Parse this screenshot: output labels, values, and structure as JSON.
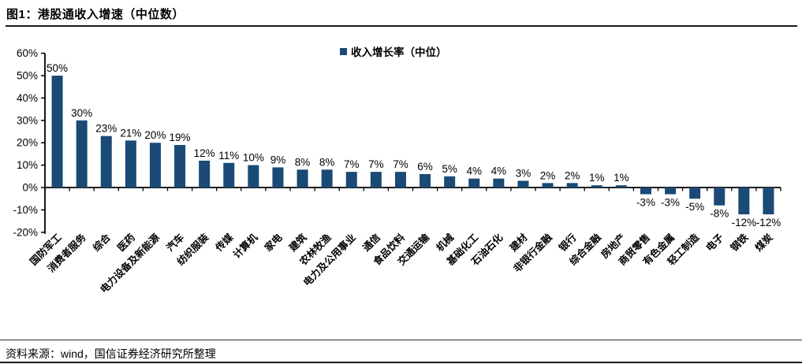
{
  "figure": {
    "title": "图1：港股通收入增速（中位数）",
    "source": "资料来源：wind，国信证券经济研究所整理"
  },
  "chart_data": {
    "type": "bar",
    "title": "港股通收入增速（中位数）",
    "legend": [
      "收入增长率（中位）"
    ],
    "legend_position": "top-center",
    "categories": [
      "国防军工",
      "消费者服务",
      "综合",
      "医药",
      "电力设备及新能源",
      "汽车",
      "纺织服装",
      "传媒",
      "计算机",
      "家电",
      "建筑",
      "农林牧渔",
      "电力及公用事业",
      "通信",
      "食品饮料",
      "交通运输",
      "机械",
      "基础化工",
      "石油石化",
      "建材",
      "非银行金融",
      "银行",
      "综合金融",
      "房地产",
      "商贸零售",
      "有色金属",
      "轻工制造",
      "电子",
      "钢铁",
      "煤炭"
    ],
    "values": [
      50,
      30,
      23,
      21,
      20,
      19,
      12,
      11,
      10,
      9,
      8,
      8,
      7,
      7,
      7,
      6,
      5,
      4,
      4,
      3,
      2,
      2,
      1,
      1,
      -3,
      -3,
      -5,
      -8,
      -12,
      -12
    ],
    "value_label_format": "{v}%",
    "ylim": [
      -20,
      60
    ],
    "ytick_step": 10,
    "ytick_labels": [
      "60%",
      "50%",
      "40%",
      "30%",
      "20%",
      "10%",
      "0%",
      "-10%",
      "-20%"
    ],
    "grid": false,
    "bar_color": "#1A4A75",
    "axis_color": "#000000"
  }
}
